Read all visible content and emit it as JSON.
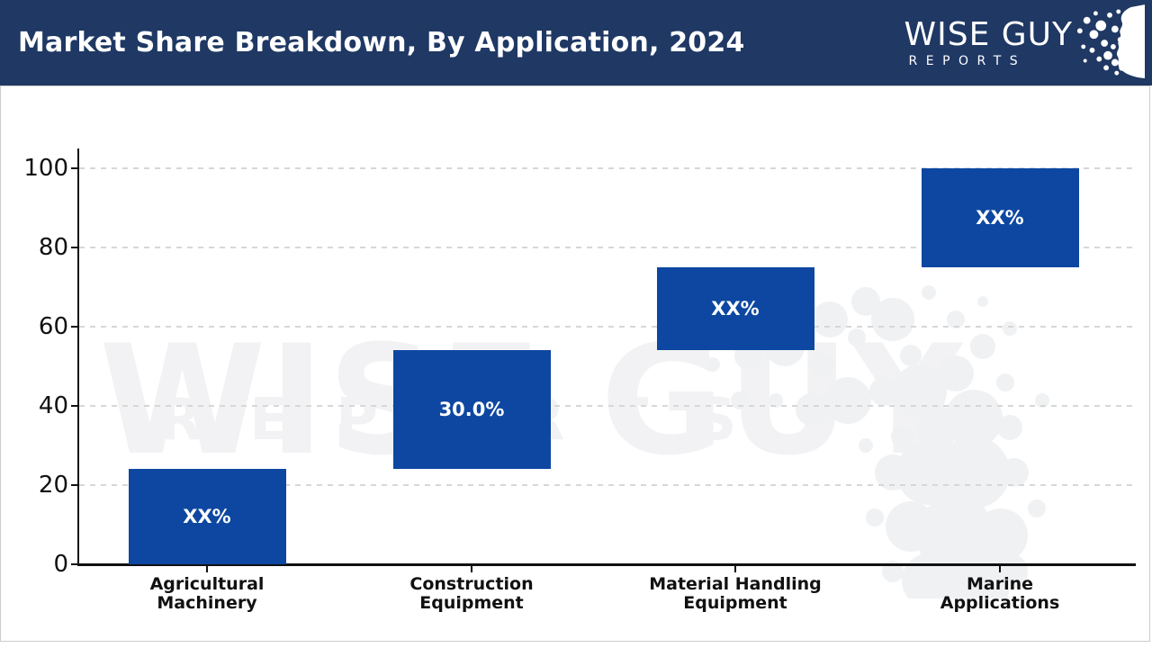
{
  "header": {
    "title": "Market Share Breakdown, By Application, 2024",
    "logo": {
      "wordmark": "WISE GUY",
      "subtext": "REPORTS"
    }
  },
  "watermark": {
    "line1": "WISE GUY",
    "line2": "REPORTS"
  },
  "chart_data": {
    "type": "bar",
    "variant": "floating-waterfall",
    "title": "Market Share Breakdown, By Application, 2024",
    "categories": [
      "Agricultural Machinery",
      "Construction Equipment",
      "Material Handling Equipment",
      "Marine Applications"
    ],
    "category_label_lines": [
      [
        "Agricultural",
        "Machinery"
      ],
      [
        "Construction",
        "Equipment"
      ],
      [
        "Material Handling",
        "Equipment"
      ],
      [
        "Marine",
        "Applications"
      ]
    ],
    "segments": [
      {
        "category": "Agricultural Machinery",
        "start": 0,
        "end": 24,
        "label": "XX%"
      },
      {
        "category": "Construction Equipment",
        "start": 24,
        "end": 54,
        "label": "30.0%",
        "value": 30.0
      },
      {
        "category": "Material Handling Equipment",
        "start": 54,
        "end": 75,
        "label": "XX%"
      },
      {
        "category": "Marine Applications",
        "start": 75,
        "end": 100,
        "label": "XX%"
      }
    ],
    "yticks": [
      0,
      20,
      40,
      60,
      80,
      100
    ],
    "ylim": [
      0,
      105
    ],
    "xlabel": "",
    "ylabel": "",
    "grid": "horizontal-dashed",
    "legend": "none",
    "colors": {
      "bar": "#0d47a1",
      "bar_label": "#ffffff",
      "header_bg": "#1f3864",
      "grid": "#d7d7d7",
      "axis": "#111111",
      "watermark": "#f2f2f4"
    }
  }
}
